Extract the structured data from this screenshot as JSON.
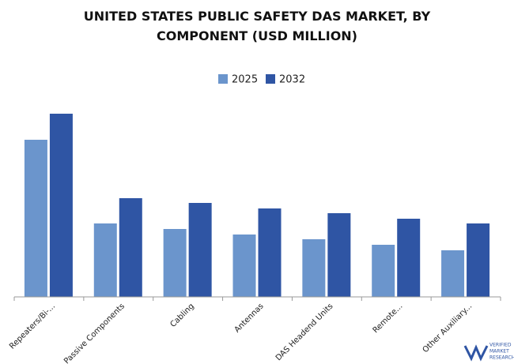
{
  "chart_data": {
    "type": "bar",
    "title": "UNITED STATES PUBLIC SAFETY DAS MARKET, BY COMPONENT (USD MILLION)",
    "categories": [
      "Repeaters/Bi-...",
      "Passive Components",
      "Cabling",
      "Antennas",
      "DAS Headend Units",
      "Remote...",
      "Other Auxiliary..."
    ],
    "series": [
      {
        "name": "2025",
        "color": "#6b95cc",
        "values": [
          199,
          93,
          86,
          79,
          73,
          66,
          59
        ]
      },
      {
        "name": "2032",
        "color": "#2f55a4",
        "values": [
          232,
          125,
          119,
          112,
          106,
          99,
          93
        ]
      }
    ],
    "ylim": [
      0,
      240
    ],
    "logo": [
      "VERIFIED",
      "MARKET",
      "RESEARCH"
    ]
  }
}
